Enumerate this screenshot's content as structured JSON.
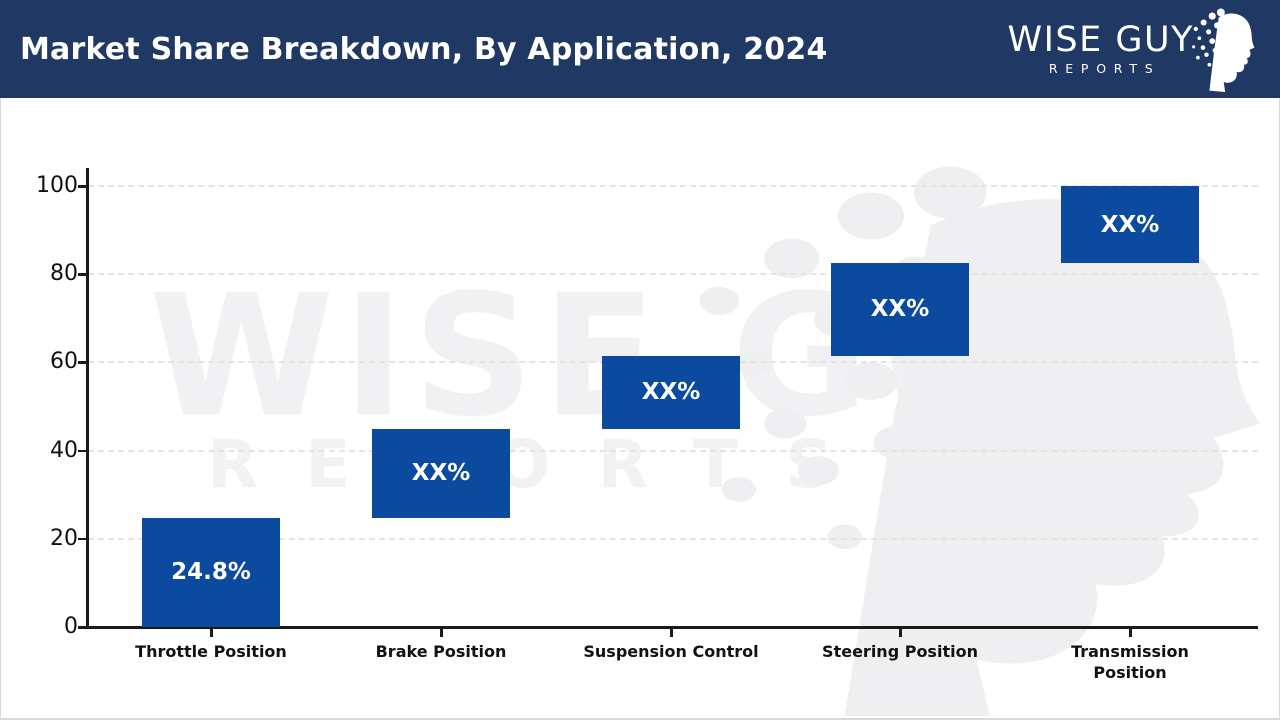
{
  "header": {
    "title": "Market Share Breakdown, By Application, 2024",
    "logo": {
      "line1": "WISE GUY",
      "line2": "REPORTS"
    }
  },
  "watermark": {
    "line1": "WISE GUY",
    "line2": "REPORTS"
  },
  "colors": {
    "header_bg": "#1F3864",
    "bar": "#0B4A9E",
    "axis": "#1A1A1A",
    "grid": "#E4E4E4",
    "bar_label": "#FFFFFF",
    "watermark": "#F1F1F3"
  },
  "chart_data": {
    "type": "bar",
    "variant": "waterfall",
    "title": "Market Share Breakdown, By Application, 2024",
    "categories": [
      "Throttle Position",
      "Brake Position",
      "Suspension Control",
      "Steering Position",
      "Transmission Position"
    ],
    "segments": [
      {
        "category": "Throttle Position",
        "start": 0,
        "end": 24.8,
        "label": "24.8%"
      },
      {
        "category": "Brake Position",
        "start": 24.8,
        "end": 44.9,
        "label": "XX%"
      },
      {
        "category": "Suspension Control",
        "start": 44.9,
        "end": 61.5,
        "label": "XX%"
      },
      {
        "category": "Steering Position",
        "start": 61.5,
        "end": 82.5,
        "label": "XX%"
      },
      {
        "category": "Transmission Position",
        "start": 82.5,
        "end": 100,
        "label": "XX%"
      }
    ],
    "ylim": [
      0,
      100
    ],
    "yticks": [
      0,
      20,
      40,
      60,
      80,
      100
    ],
    "xlabel": "",
    "ylabel": "",
    "grid": "horizontal-dashed",
    "legend": "none"
  }
}
